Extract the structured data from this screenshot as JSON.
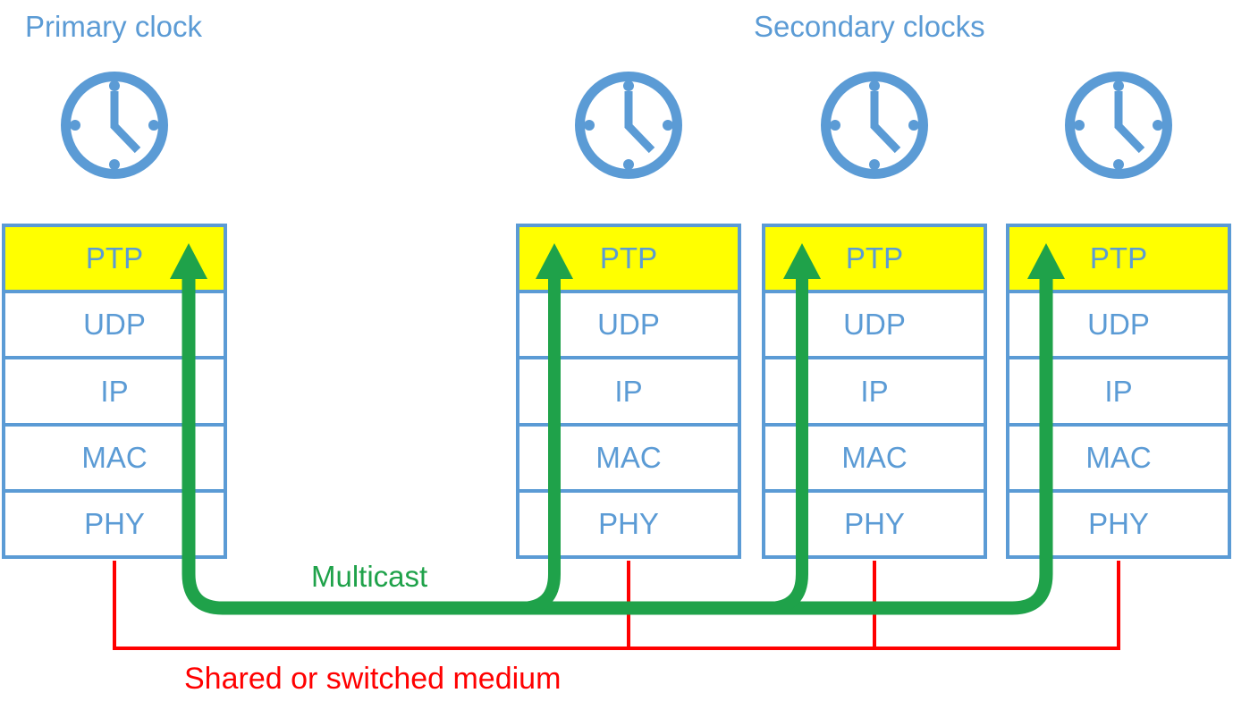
{
  "labels": {
    "primary_clock": "Primary clock",
    "secondary_clocks": "Secondary clocks",
    "multicast": "Multicast",
    "shared_medium": "Shared or switched medium"
  },
  "stacks": [
    {
      "role": "primary",
      "highlight_layer": "PTP",
      "layers": [
        "PTP",
        "UDP",
        "IP",
        "MAC",
        "PHY"
      ]
    },
    {
      "role": "secondary",
      "highlight_layer": "PTP",
      "layers": [
        "PTP",
        "UDP",
        "IP",
        "MAC",
        "PHY"
      ]
    },
    {
      "role": "secondary",
      "highlight_layer": "PTP",
      "layers": [
        "PTP",
        "UDP",
        "IP",
        "MAC",
        "PHY"
      ]
    },
    {
      "role": "secondary",
      "highlight_layer": "PTP",
      "layers": [
        "PTP",
        "UDP",
        "IP",
        "MAC",
        "PHY"
      ]
    }
  ],
  "icons": {
    "clock": "clock-icon",
    "arrow": "multicast-arrowhead-icon"
  },
  "colors": {
    "blue": "#5B9BD5",
    "green": "#1FA24A",
    "red": "#FF0000",
    "yellow": "#FFFF00"
  }
}
